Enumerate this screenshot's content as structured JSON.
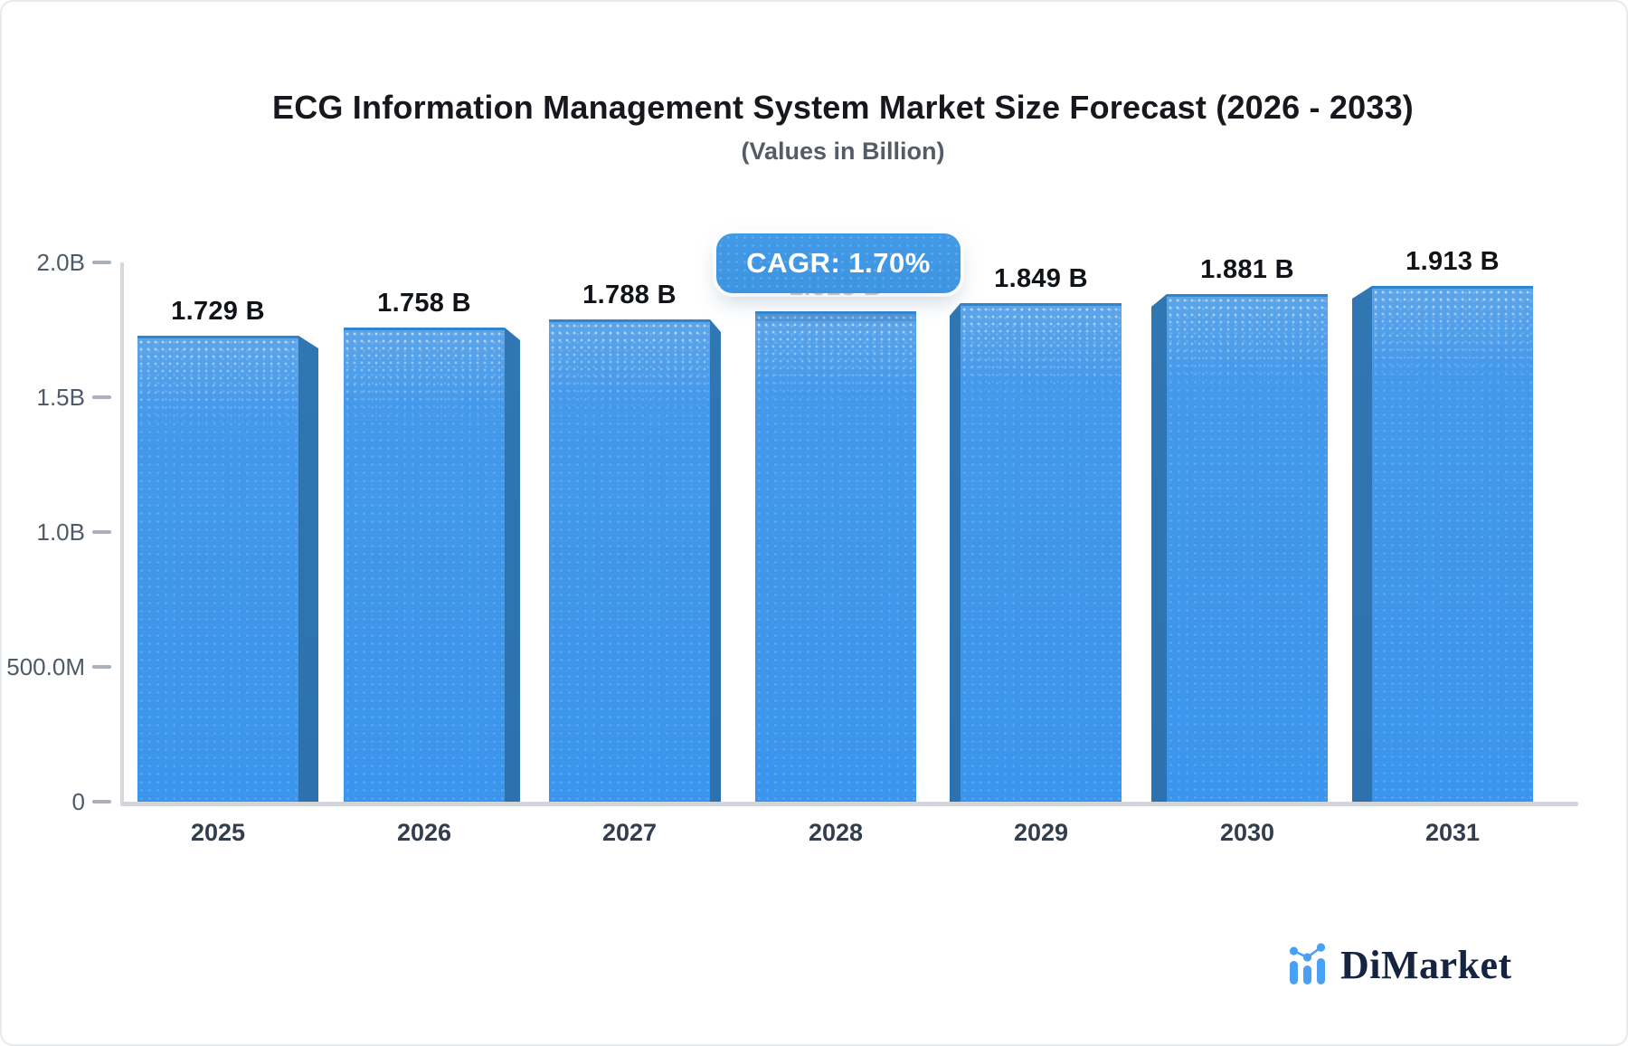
{
  "title": "ECG Information Management System Market Size Forecast (2026 - 2033)",
  "subtitle": "(Values in Billion)",
  "badge": {
    "label": "CAGR: 1.70%"
  },
  "y_axis": {
    "ticks": [
      {
        "label": "2.0B",
        "value": 2.0
      },
      {
        "label": "1.5B",
        "value": 1.5
      },
      {
        "label": "1.0B",
        "value": 1.0
      },
      {
        "label": "500.0M",
        "value": 0.5
      },
      {
        "label": "0",
        "value": 0.0
      }
    ]
  },
  "chart_data": {
    "type": "bar",
    "categories": [
      "2025",
      "2026",
      "2027",
      "2028",
      "2029",
      "2030",
      "2031"
    ],
    "values": [
      1.729,
      1.758,
      1.788,
      1.818,
      1.849,
      1.881,
      1.913
    ],
    "value_labels": [
      "1.729 B",
      "1.758 B",
      "1.788 B",
      "1.818 B",
      "1.849 B",
      "1.881 B",
      "1.913 B"
    ],
    "title": "ECG Information Management System Market Size Forecast (2026 - 2033)",
    "subtitle": "(Values in Billion)",
    "annotation": "CAGR: 1.70%",
    "xlabel": "",
    "ylabel": "",
    "ylim": [
      0,
      2.0
    ],
    "grid": false,
    "legend_position": "none",
    "bar_face_color": "#4299eb",
    "bar_side_color": "#2d72ae",
    "style": "3d-perspective-bars"
  },
  "footer": {
    "brand": "DiMarket",
    "logo_icon": "mini-bar-line-chart-logo-icon",
    "brand_color": "#152440",
    "logo_blue": "#4aa0f3"
  },
  "colors": {
    "badge_bg": "#3d95e2",
    "badge_text": "#ffffff",
    "axis_line": "#d5d8dc",
    "tick_text": "#4e5a68",
    "year_text": "#323e4e",
    "value_text": "#101318",
    "title_text": "#16181d",
    "subtitle_text": "#565c66"
  }
}
